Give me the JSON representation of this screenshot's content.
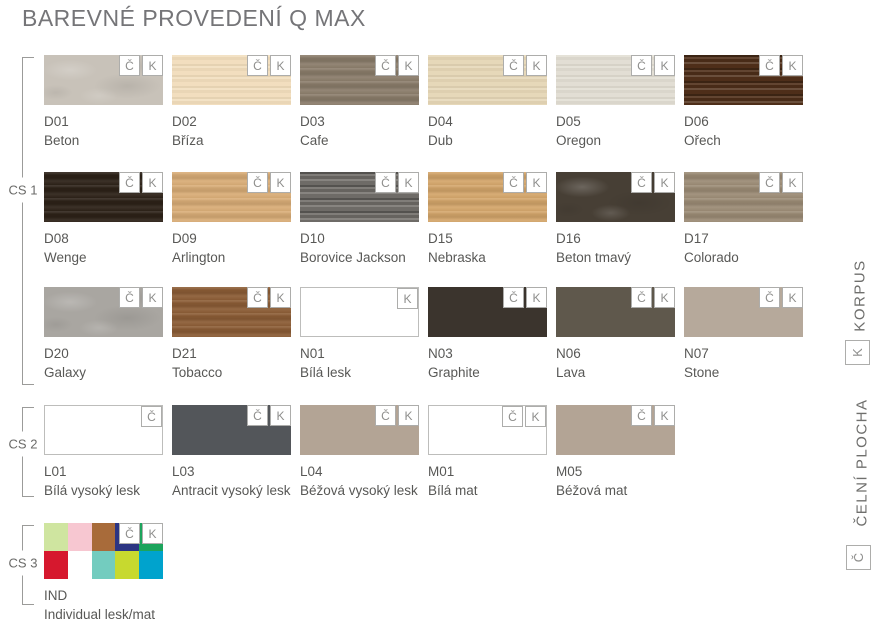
{
  "title": "BAREVNÉ PROVEDENÍ Q MAX",
  "right_legend": [
    {
      "label": "KORPUS",
      "badge": "K"
    },
    {
      "label": "ČELNÍ PLOCHA",
      "badge": "Č"
    }
  ],
  "groups": [
    {
      "label": "CS 1",
      "rows": [
        [
          {
            "code": "D01",
            "name": "Beton",
            "badges": [
              "Č",
              "K"
            ],
            "color": "#c8c2b9",
            "texture": "concrete"
          },
          {
            "code": "D02",
            "name": "Bříza",
            "badges": [
              "Č",
              "K"
            ],
            "color": "#f1ddbc",
            "texture": "wood-light"
          },
          {
            "code": "D03",
            "name": "Cafe",
            "badges": [
              "Č",
              "K"
            ],
            "color": "#8b7d6b",
            "texture": "wood"
          },
          {
            "code": "D04",
            "name": "Dub",
            "badges": [
              "Č",
              "K"
            ],
            "color": "#e5d6b6",
            "texture": "wood-light"
          },
          {
            "code": "D05",
            "name": "Oregon",
            "badges": [
              "Č",
              "K"
            ],
            "color": "#e1ddd2",
            "texture": "wood-light"
          },
          {
            "code": "D06",
            "name": "Ořech",
            "badges": [
              "Č",
              "K"
            ],
            "color": "#50301a",
            "texture": "wood-strong"
          }
        ],
        [
          {
            "code": "D08",
            "name": "Wenge",
            "badges": [
              "Č",
              "K"
            ],
            "color": "#2d2218",
            "texture": "wood"
          },
          {
            "code": "D09",
            "name": "Arlington",
            "badges": [
              "Č",
              "K"
            ],
            "color": "#d9ad77",
            "texture": "wood"
          },
          {
            "code": "D10",
            "name": "Borovice Jackson",
            "badges": [
              "Č",
              "K"
            ],
            "color": "#726e6a",
            "texture": "wood-strong"
          },
          {
            "code": "D15",
            "name": "Nebraska",
            "badges": [
              "Č",
              "K"
            ],
            "color": "#d4a66b",
            "texture": "wood"
          },
          {
            "code": "D16",
            "name": "Beton tmavý",
            "badges": [
              "Č",
              "K"
            ],
            "color": "#473f35",
            "texture": "concrete"
          },
          {
            "code": "D17",
            "name": "Colorado",
            "badges": [
              "Č",
              "K"
            ],
            "color": "#9c8c76",
            "texture": "wood"
          }
        ],
        [
          {
            "code": "D20",
            "name": "Galaxy",
            "badges": [
              "Č",
              "K"
            ],
            "color": "#a9a6a1",
            "texture": "concrete"
          },
          {
            "code": "D21",
            "name": "Tobacco",
            "badges": [
              "Č",
              "K"
            ],
            "color": "#8c5d36",
            "texture": "wood"
          },
          {
            "code": "N01",
            "name": "Bílá lesk",
            "badges": [
              "K"
            ],
            "color": "#ffffff",
            "texture": "white"
          },
          {
            "code": "N03",
            "name": "Graphite",
            "badges": [
              "Č",
              "K"
            ],
            "color": "#3b342d",
            "texture": "plain"
          },
          {
            "code": "N06",
            "name": "Lava",
            "badges": [
              "Č",
              "K"
            ],
            "color": "#5f584c",
            "texture": "plain"
          },
          {
            "code": "N07",
            "name": "Stone",
            "badges": [
              "Č",
              "K"
            ],
            "color": "#b6a99b",
            "texture": "plain"
          }
        ]
      ]
    },
    {
      "label": "CS 2",
      "rows": [
        [
          {
            "code": "L01",
            "name": "Bílá vysoký lesk",
            "badges": [
              "Č"
            ],
            "color": "#ffffff",
            "texture": "white"
          },
          {
            "code": "L03",
            "name": "Antracit vysoký lesk",
            "badges": [
              "Č",
              "K"
            ],
            "color": "#53565a",
            "texture": "plain"
          },
          {
            "code": "L04",
            "name": "Béžová vysoký lesk",
            "badges": [
              "Č",
              "K"
            ],
            "color": "#b3a495",
            "texture": "plain"
          },
          {
            "code": "M01",
            "name": "Bílá mat",
            "badges": [
              "Č",
              "K"
            ],
            "color": "#ffffff",
            "texture": "white"
          },
          {
            "code": "M05",
            "name": "Béžová mat",
            "badges": [
              "Č",
              "K"
            ],
            "color": "#b3a495",
            "texture": "plain"
          }
        ]
      ]
    },
    {
      "label": "CS 3",
      "rows": [
        [
          {
            "code": "IND",
            "name": "Individual lesk/mat",
            "badges": [
              "Č",
              "K"
            ],
            "texture": "multi",
            "colors": [
              [
                "#cfe5a0",
                "#f7c7d1",
                "#a86b3a",
                "#2c3583",
                "#1ca45c"
              ],
              [
                "#d6182e",
                "#ffffff",
                "#73ccbf",
                "#c7d92f",
                "#00a3cd"
              ]
            ]
          }
        ]
      ]
    }
  ]
}
